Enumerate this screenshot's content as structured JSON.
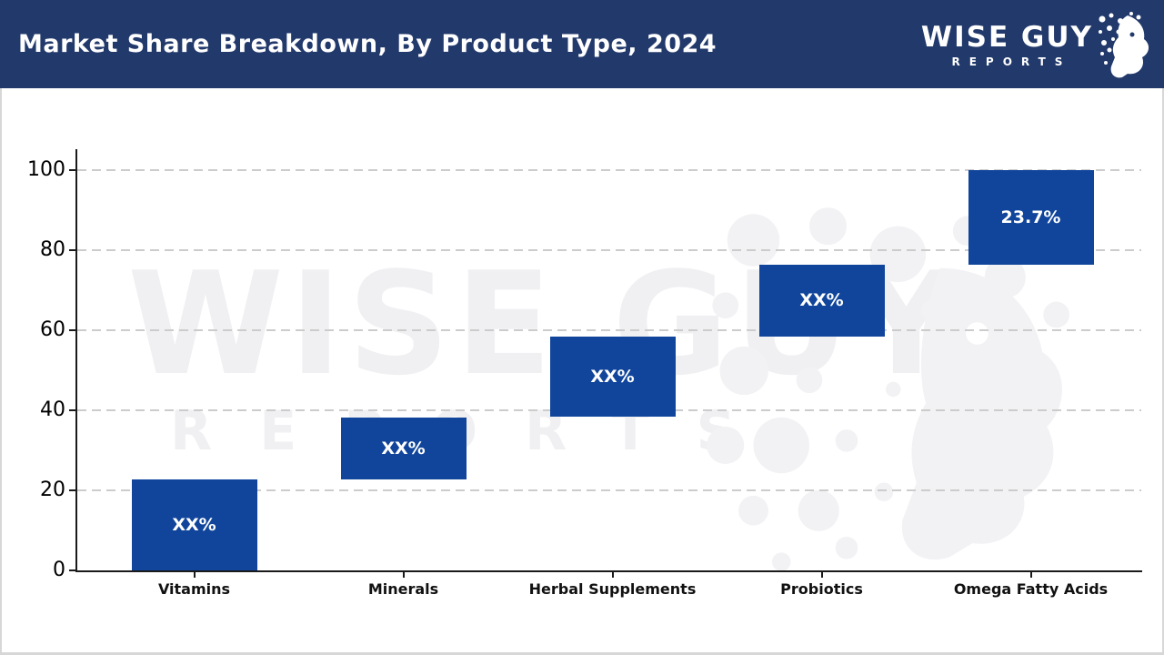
{
  "header": {
    "bg_color": "#22396B",
    "title": "Market Share Breakdown, By Product Type, 2024",
    "logo": {
      "wordmark": "WISE GUY",
      "subtext": "REPORTS",
      "icon": "dotted-head-icon"
    }
  },
  "watermark": {
    "wordmark": "WISE GUY",
    "subtext": "REPORTS",
    "icon": "dotted-head-watermark-icon"
  },
  "chart_data": {
    "type": "bar",
    "subtype": "waterfall",
    "title": "Market Share Breakdown, By Product Type, 2024",
    "categories": [
      "Vitamins",
      "Minerals",
      "Herbal Supplements",
      "Probiotics",
      "Omega Fatty Acids"
    ],
    "series": [
      {
        "name": "Market share (%)",
        "segments": [
          {
            "category": "Vitamins",
            "start": 0,
            "end": 22.8,
            "label": "XX%"
          },
          {
            "category": "Minerals",
            "start": 22.8,
            "end": 38.3,
            "label": "XX%"
          },
          {
            "category": "Herbal Supplements",
            "start": 38.3,
            "end": 58.5,
            "label": "XX%"
          },
          {
            "category": "Probiotics",
            "start": 58.5,
            "end": 76.3,
            "label": "XX%"
          },
          {
            "category": "Omega Fatty Acids",
            "start": 76.3,
            "end": 100,
            "label": "23.7%"
          }
        ]
      }
    ],
    "xlabel": "",
    "ylabel": "",
    "yticks": [
      0,
      20,
      40,
      60,
      80,
      100
    ],
    "ylim": [
      0,
      104.8
    ],
    "grid": "horizontal-dashed",
    "legend_position": "none",
    "bar_color": "#10459B",
    "bar_label_color": "#FFFFFF",
    "axis_color": "#1A1A1A",
    "gridline_color": "#CCCCCC"
  }
}
